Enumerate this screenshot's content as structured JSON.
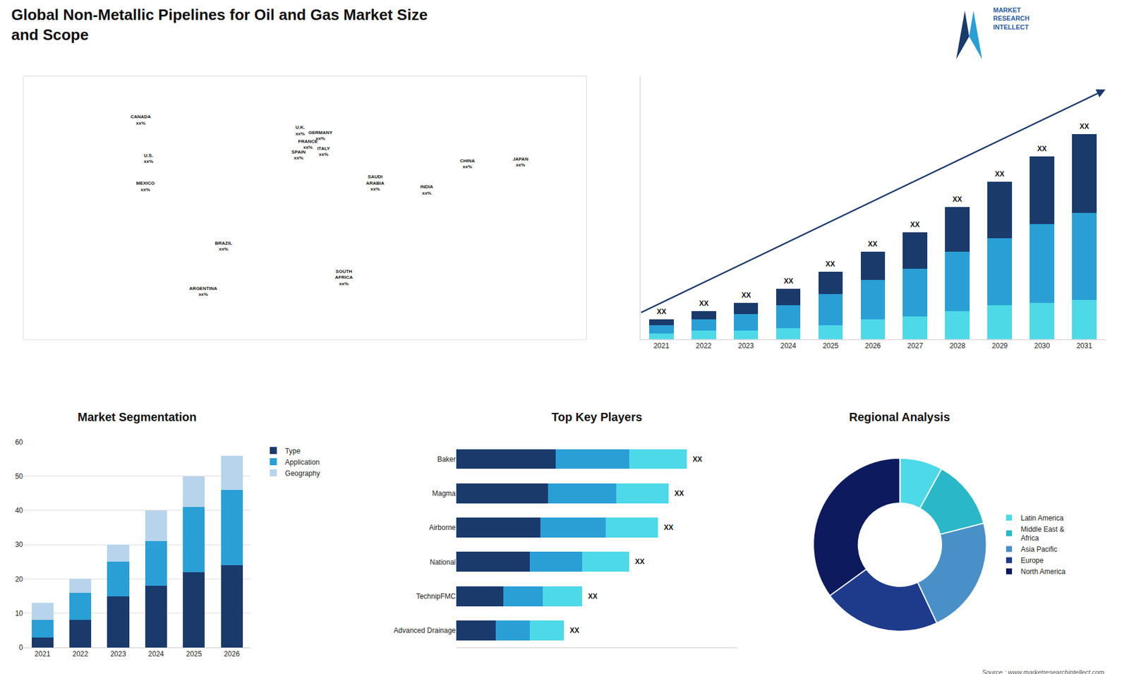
{
  "title": "Global Non-Metallic Pipelines for Oil and Gas Market Size\nand Scope",
  "annotations": [
    "MARKET\nRESEARCH\nINTELLECT",
    "Source : www.marketresearchintellect.com"
  ],
  "chart_data": [
    {
      "type": "map",
      "x": [
        -105,
        -100,
        -102,
        -52,
        -65,
        -3,
        2,
        -4,
        10,
        12,
        45,
        78,
        104,
        138,
        25
      ],
      "y": [
        60,
        38,
        22,
        -12,
        -38,
        54,
        46,
        40,
        51,
        42,
        24,
        20,
        35,
        36,
        -30
      ],
      "labels": [
        "CANADA\nxx%",
        "U.S.\nxx%",
        "MEXICO\nxx%",
        "BRAZIL\nxx%",
        "ARGENTINA\nxx%",
        "U.K.\nxx%",
        "FRANCE\nxx%",
        "SPAIN\nxx%",
        "GERMANY\nxx%",
        "ITALY\nxx%",
        "SAUDI\nARABIA\nxx%",
        "INDIA\nxx%",
        "CHINA\nxx%",
        "JAPAN\nxx%",
        "SOUTH\nAFRICA\nxx%"
      ],
      "xlim": [
        -180,
        180
      ],
      "ylim": [
        -65,
        85
      ],
      "tick_labels": false
    },
    {
      "type": "bar",
      "stacked": true,
      "categories": [
        "2021",
        "2022",
        "2023",
        "2024",
        "2025",
        "2026",
        "2027",
        "2028",
        "2029",
        "2030",
        "2031"
      ],
      "series": [
        {
          "color": "#4dd9e8",
          "values": [
            2,
            3,
            3,
            4,
            5,
            7,
            8,
            10,
            12,
            13,
            14
          ]
        },
        {
          "color": "#2a9fd6",
          "values": [
            3,
            4,
            6,
            8,
            11,
            14,
            17,
            21,
            24,
            28,
            31
          ]
        },
        {
          "color": "#1a3a6b",
          "values": [
            2,
            3,
            4,
            6,
            8,
            10,
            13,
            16,
            20,
            24,
            28
          ]
        }
      ],
      "ylim": [
        0,
        93.44
      ],
      "tick_labels": "x",
      "grid": false,
      "annotations": [
        {
          "x": "2021",
          "text": "XX"
        },
        {
          "x": "2022",
          "text": "XX"
        },
        {
          "x": "2023",
          "text": "XX"
        },
        {
          "x": "2024",
          "text": "XX"
        },
        {
          "x": "2025",
          "text": "XX"
        },
        {
          "x": "2026",
          "text": "XX"
        },
        {
          "x": "2027",
          "text": "XX"
        },
        {
          "x": "2028",
          "text": "XX"
        },
        {
          "x": "2029",
          "text": "XX"
        },
        {
          "x": "2030",
          "text": "XX"
        },
        {
          "x": "2031",
          "text": "XX"
        }
      ]
    },
    {
      "type": "bar",
      "stacked": true,
      "title": "Market Segmentation",
      "categories": [
        "2021",
        "2022",
        "2023",
        "2024",
        "2025",
        "2026"
      ],
      "series": [
        {
          "name": "Type",
          "color": "#1a3a6b",
          "values": [
            3,
            8,
            15,
            18,
            22,
            24
          ]
        },
        {
          "name": "Application",
          "color": "#2a9fd6",
          "values": [
            5,
            8,
            10,
            13,
            19,
            22
          ]
        },
        {
          "name": "Geography",
          "color": "#b8d4ec",
          "values": [
            5,
            4,
            5,
            9,
            9,
            10
          ]
        }
      ],
      "ylim": [
        0,
        60
      ],
      "yticks": [
        0,
        10,
        20,
        30,
        40,
        50,
        60
      ],
      "grid": true,
      "legend": "right"
    },
    {
      "type": "bar",
      "stacked": true,
      "orientation": "horizontal",
      "title": "Top Key Players",
      "categories": [
        "Baker",
        "Magma",
        "Airborne",
        "National",
        "TechnipFMC",
        "Advanced Drainage"
      ],
      "series": [
        {
          "color": "#1a3a6b",
          "values": [
            38,
            35,
            32,
            28,
            18,
            15
          ]
        },
        {
          "color": "#2a9fd6",
          "values": [
            28,
            26,
            25,
            20,
            15,
            13
          ]
        },
        {
          "color": "#4dd9e8",
          "values": [
            22,
            20,
            20,
            18,
            15,
            13
          ]
        }
      ],
      "xlim": [
        0,
        107.36
      ],
      "tick_labels": "y",
      "grid": false,
      "annotations": [
        {
          "y": "Baker",
          "text": "XX"
        },
        {
          "y": "Magma",
          "text": "XX"
        },
        {
          "y": "Airborne",
          "text": "XX"
        },
        {
          "y": "National",
          "text": "XX"
        },
        {
          "y": "TechnipFMC",
          "text": "XX"
        },
        {
          "y": "Advanced Drainage",
          "text": "XX"
        }
      ]
    },
    {
      "type": "pie",
      "title": "Regional Analysis",
      "categories": [
        "Latin America",
        "Middle East &\nAfrica",
        "Asia Pacific",
        "Europe",
        "North America"
      ],
      "values": [
        8,
        13,
        22,
        22,
        35
      ],
      "colors": [
        "#4dd9e8",
        "#2ab8c8",
        "#4a90c8",
        "#1e3a8a",
        "#0d1b5e"
      ],
      "legend": "right"
    }
  ]
}
